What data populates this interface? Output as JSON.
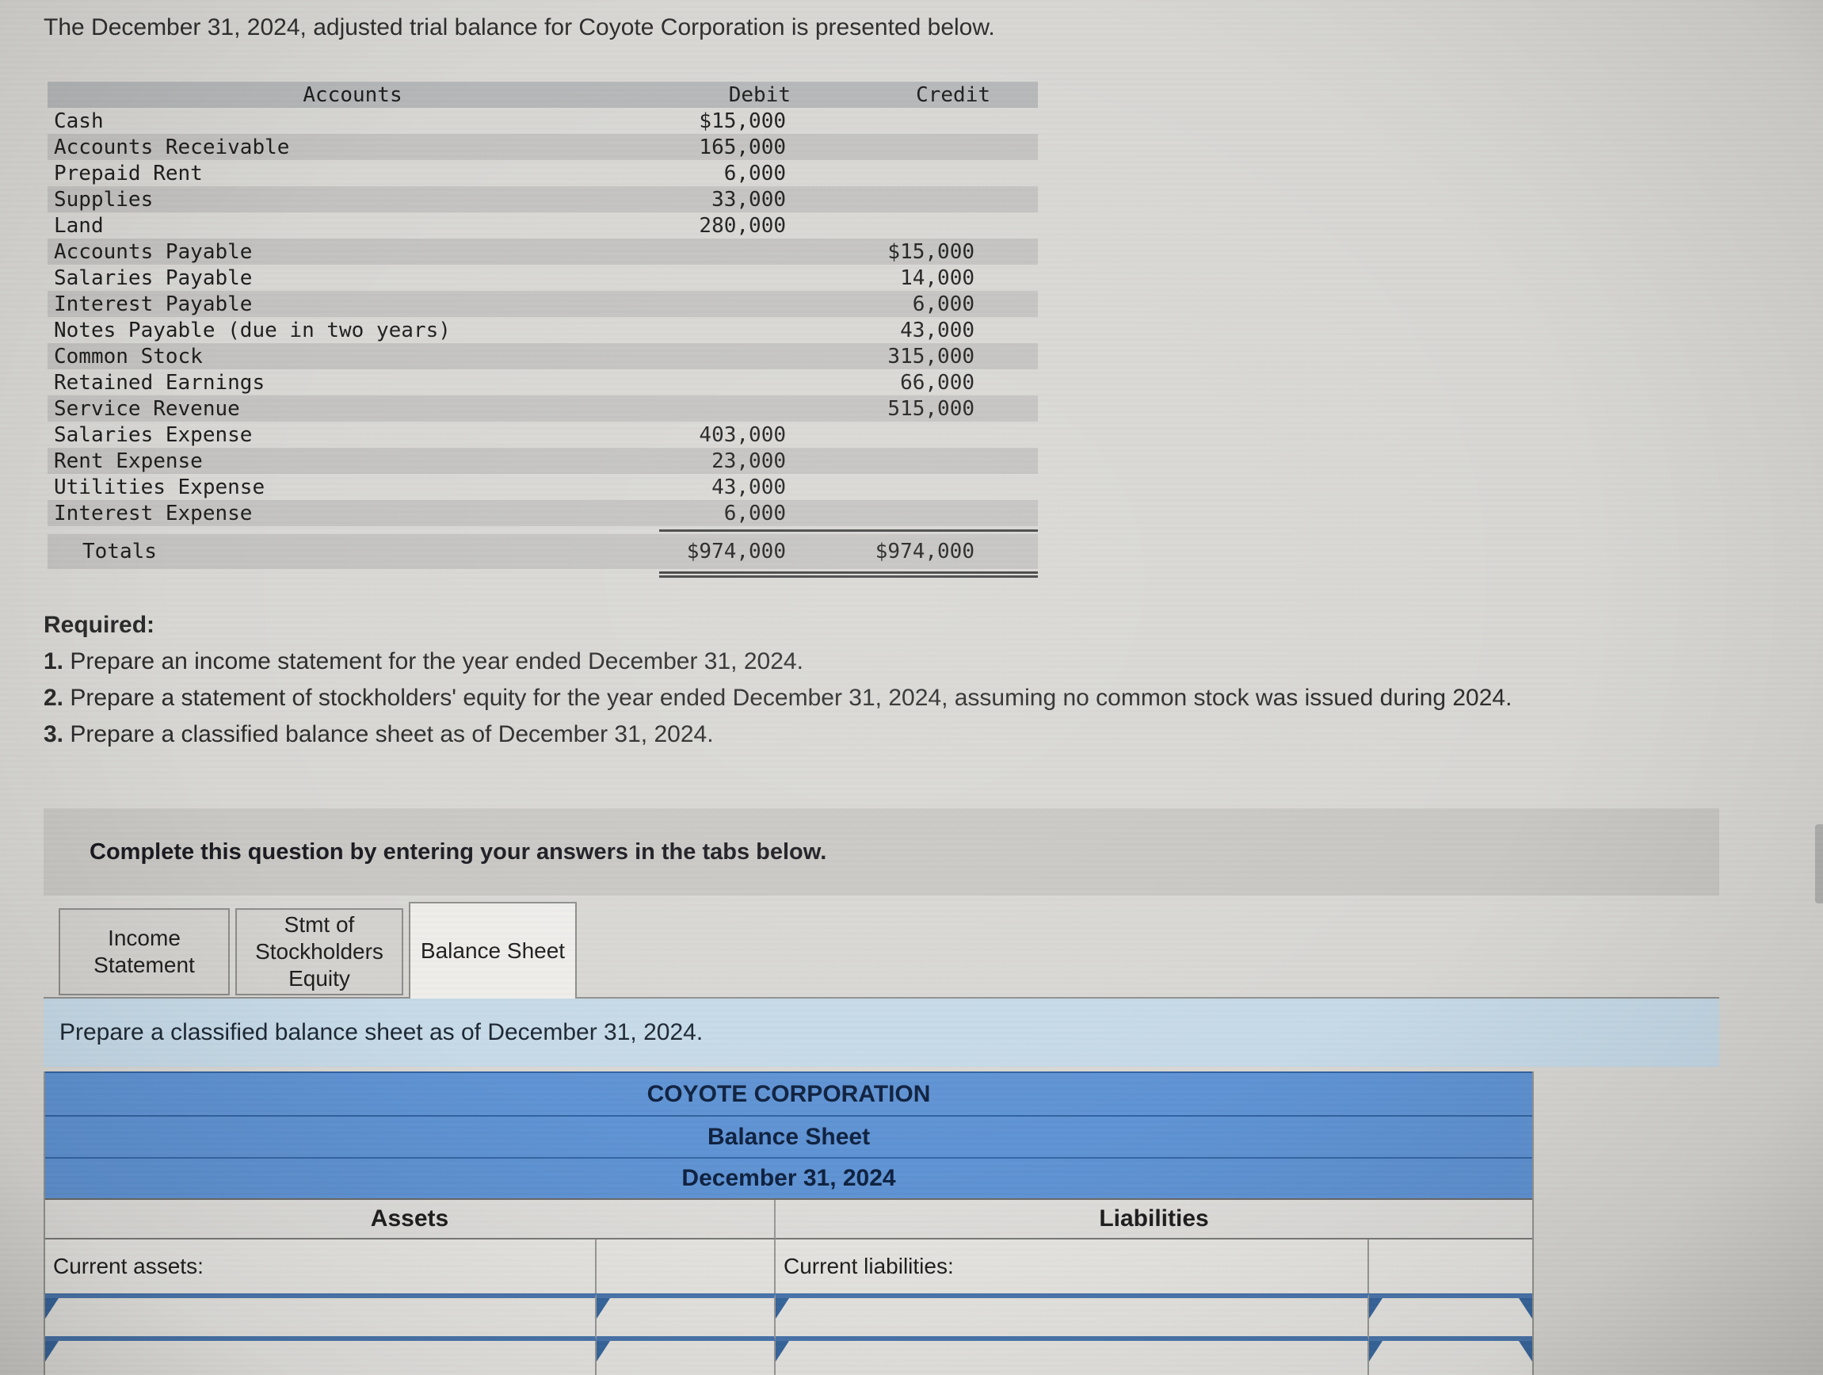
{
  "intro": "The December 31, 2024, adjusted trial balance for Coyote Corporation is presented below.",
  "trial_balance": {
    "headers": {
      "accounts": "Accounts",
      "debit": "Debit",
      "credit": "Credit"
    },
    "rows": [
      {
        "account": "Cash",
        "debit": "$15,000",
        "credit": ""
      },
      {
        "account": "Accounts Receivable",
        "debit": "165,000",
        "credit": ""
      },
      {
        "account": "Prepaid Rent",
        "debit": "6,000",
        "credit": ""
      },
      {
        "account": "Supplies",
        "debit": "33,000",
        "credit": ""
      },
      {
        "account": "Land",
        "debit": "280,000",
        "credit": ""
      },
      {
        "account": "Accounts Payable",
        "debit": "",
        "credit": "$15,000"
      },
      {
        "account": "Salaries Payable",
        "debit": "",
        "credit": "14,000"
      },
      {
        "account": "Interest Payable",
        "debit": "",
        "credit": "6,000"
      },
      {
        "account": "Notes Payable (due in two years)",
        "debit": "",
        "credit": "43,000"
      },
      {
        "account": "Common Stock",
        "debit": "",
        "credit": "315,000"
      },
      {
        "account": "Retained Earnings",
        "debit": "",
        "credit": "66,000"
      },
      {
        "account": "Service Revenue",
        "debit": "",
        "credit": "515,000"
      },
      {
        "account": "Salaries Expense",
        "debit": "403,000",
        "credit": ""
      },
      {
        "account": "Rent Expense",
        "debit": "23,000",
        "credit": ""
      },
      {
        "account": "Utilities Expense",
        "debit": "43,000",
        "credit": ""
      },
      {
        "account": "Interest Expense",
        "debit": "6,000",
        "credit": ""
      }
    ],
    "totals": {
      "label": "Totals",
      "debit": "$974,000",
      "credit": "$974,000"
    }
  },
  "required": {
    "title": "Required:",
    "items": [
      {
        "num": "1.",
        "text": "Prepare an income statement for the year ended December 31, 2024."
      },
      {
        "num": "2.",
        "text": "Prepare a statement of stockholders' equity for the year ended December 31, 2024, assuming no common stock was issued during 2024."
      },
      {
        "num": "3.",
        "text": "Prepare a classified balance sheet as of December 31, 2024."
      }
    ]
  },
  "banner": {
    "text": "Complete this question by entering your answers in the tabs below."
  },
  "tabs": [
    {
      "label": "Income Statement",
      "active": false
    },
    {
      "label": "Stmt of Stockholders Equity",
      "active": false
    },
    {
      "label": "Balance Sheet",
      "active": true
    }
  ],
  "instruction": {
    "text": "Prepare a classified balance sheet as of December 31, 2024."
  },
  "balance_sheet": {
    "company": "COYOTE CORPORATION",
    "statement": "Balance Sheet",
    "date": "December 31, 2024",
    "left_header": "Assets",
    "right_header": "Liabilities",
    "left_section_label": "Current assets:",
    "right_section_label": "Current liabilities:"
  },
  "colors": {
    "balance_sheet_header_blue": "#5f93d3",
    "input_border_blue": "#4a76ad",
    "cell_flag_blue": "#38679f",
    "instruction_bar_blue": "#c6dae8",
    "banner_gray": "#c9c7c3",
    "table_header_gray": "#b5b7b8"
  }
}
